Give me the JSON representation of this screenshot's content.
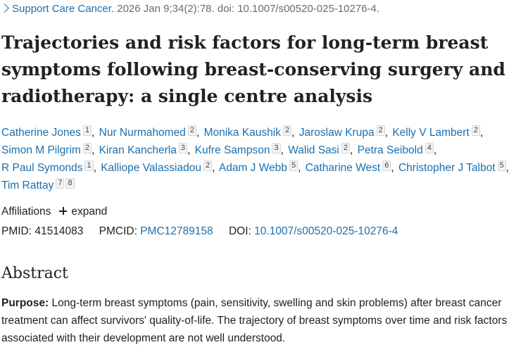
{
  "citation": {
    "journal": "Support Care Cancer.",
    "details": "2026 Jan 9;34(2):78. doi: 10.1007/s00520-025-10276-4."
  },
  "article": {
    "title": "Trajectories and risk factors for long-term breast symptoms following breast-conserving surgery and radiotherapy: a single centre analysis"
  },
  "authors": [
    {
      "name": "Catherine Jones",
      "affs": [
        "1"
      ]
    },
    {
      "name": "Nur Nurmahomed",
      "affs": [
        "2"
      ]
    },
    {
      "name": "Monika Kaushik",
      "affs": [
        "2"
      ]
    },
    {
      "name": "Jaroslaw Krupa",
      "affs": [
        "2"
      ]
    },
    {
      "name": "Kelly V Lambert",
      "affs": [
        "2"
      ]
    },
    {
      "name": "Simon M Pilgrim",
      "affs": [
        "2"
      ]
    },
    {
      "name": "Kiran Kancherla",
      "affs": [
        "3"
      ]
    },
    {
      "name": "Kufre Sampson",
      "affs": [
        "3"
      ]
    },
    {
      "name": "Walid Sasi",
      "affs": [
        "2"
      ]
    },
    {
      "name": "Petra Seibold",
      "affs": [
        "4"
      ]
    },
    {
      "name": "R Paul Symonds",
      "affs": [
        "1"
      ]
    },
    {
      "name": "Kalliope Valassiadou",
      "affs": [
        "2"
      ]
    },
    {
      "name": "Adam J Webb",
      "affs": [
        "5"
      ]
    },
    {
      "name": "Catharine West",
      "affs": [
        "6"
      ]
    },
    {
      "name": "Christopher J Talbot",
      "affs": [
        "5"
      ]
    },
    {
      "name": "Tim Rattay",
      "affs": [
        "7",
        "8"
      ]
    }
  ],
  "affiliations": {
    "label": "Affiliations",
    "expand_label": "expand"
  },
  "identifiers": {
    "pmid_label": "PMID:",
    "pmid": "41514083",
    "pmcid_label": "PMCID:",
    "pmcid": "PMC12789158",
    "doi_label": "DOI:",
    "doi": "10.1007/s00520-025-10276-4"
  },
  "abstract": {
    "heading": "Abstract",
    "purpose_label": "Purpose:",
    "purpose_text": "Long-term breast symptoms (pain, sensitivity, swelling and skin problems) after breast cancer treatment can affect survivors' quality-of-life. The trajectory of breast symptoms over time and risk factors associated with their development are not well understood."
  },
  "colors": {
    "link": "#1a6fae",
    "text": "#212121",
    "muted": "#6b6b6b"
  },
  "icons": {
    "journal_chevron": "chevron-right-icon",
    "expand": "plus-icon"
  }
}
